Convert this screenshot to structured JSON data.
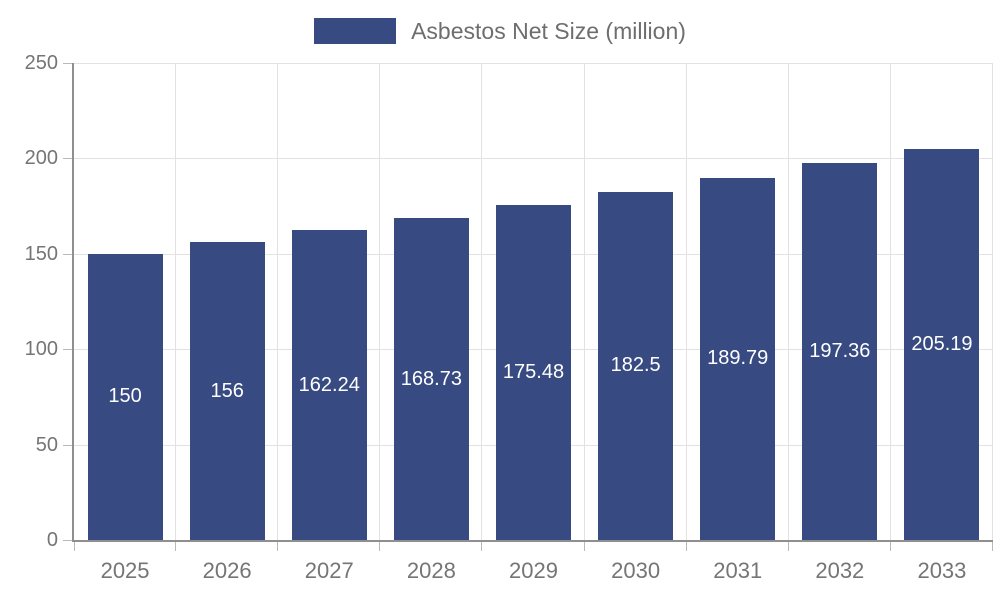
{
  "chart_data": {
    "type": "bar",
    "legend": "Asbestos Net Size (million)",
    "categories": [
      "2025",
      "2026",
      "2027",
      "2028",
      "2029",
      "2030",
      "2031",
      "2032",
      "2033"
    ],
    "values": [
      150,
      156,
      162.24,
      168.73,
      175.48,
      182.5,
      189.79,
      197.36,
      205.19
    ],
    "value_labels": [
      "150",
      "156",
      "162.24",
      "168.73",
      "175.48",
      "182.5",
      "189.79",
      "197.36",
      "205.19"
    ],
    "ylim": [
      0,
      250
    ],
    "yticks": [
      0,
      50,
      100,
      150,
      200,
      250
    ],
    "grid": true,
    "legend_position": "top-center",
    "colors": {
      "bar": "#374a82",
      "bar_label": "#ffffff",
      "gridline": "#e2e2e2",
      "axis_line": "#8f8f8f",
      "tick": "#b9b9b9",
      "axis_text": "#757575",
      "legend_text": "#6e6e6e"
    }
  }
}
